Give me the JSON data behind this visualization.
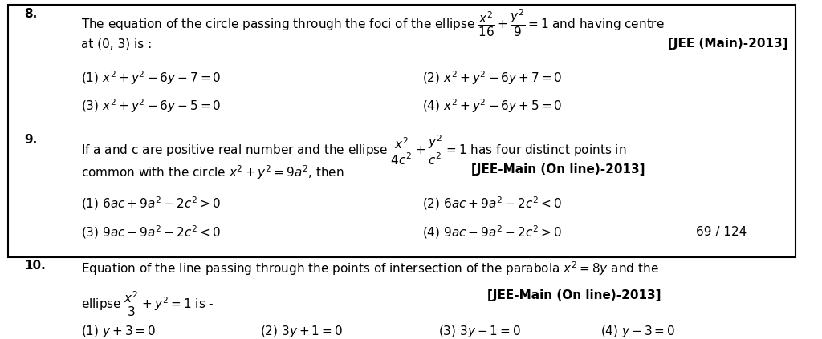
{
  "background_color": "#ffffff",
  "border_color": "#000000",
  "figsize": [
    10.24,
    4.23
  ],
  "dpi": 100,
  "q8_number": "8.",
  "q8_line1": "The equation of the circle passing through the foci of the ellipse $\\dfrac{x^2}{16}+\\dfrac{y^2}{9}=1$ and having centre",
  "q8_line2": "at (0, 3) is :",
  "q8_ref": "[JEE (Main)-2013]",
  "q8_opt1": "(1) $x^2+y^2-6y-7=0$",
  "q8_opt2": "(2) $x^2+y^2-6y+7=0$",
  "q8_opt3": "(3) $x^2+y^2-6y-5=0$",
  "q8_opt4": "(4) $x^2+y^2-6y+5=0$",
  "q9_number": "9.",
  "q9_line1": "If a and c are positive real number and the ellipse $\\dfrac{x^2}{4c^2}+\\dfrac{y^2}{c^2}=1$ has four distinct points in",
  "q9_line2": "common with the circle $x^2+y^2=9a^2$, then",
  "q9_ref": "[JEE-Main (On line)-2013]",
  "q9_opt1": "(1) $6ac+9a^2-2c^2>0$",
  "q9_opt2": "(2) $6ac+9a^2-2c^2<0$",
  "q9_opt3": "(3) $9ac-9a^2-2c^2<0$",
  "q9_opt4": "(4) $9ac-9a^2-2c^2>0$",
  "page_num": "69 / 124",
  "q10_number": "10.",
  "q10_line1": "Equation of the line passing through the points of intersection of the parabola $x^2=8y$ and the",
  "q10_line2": "ellipse $\\dfrac{x^2}{3}+y^2=1$ is -",
  "q10_ref": "[JEE-Main (On line)-2013]",
  "q10_opt1": "(1) $y+3=0$",
  "q10_opt2": "(2) $3y+1=0$",
  "q10_opt3": "(3) $3y-1=0$",
  "q10_opt4": "(4) $y-3=0$",
  "font_size_main": 11,
  "font_size_small": 10
}
